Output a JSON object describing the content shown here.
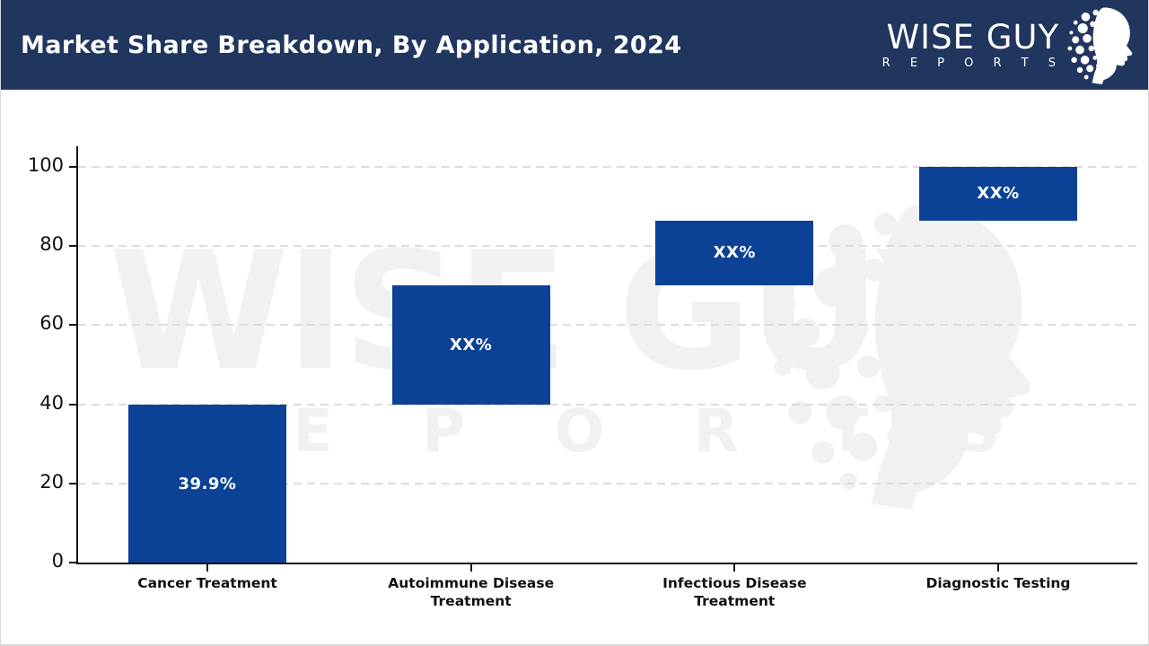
{
  "header": {
    "title": "Market Share Breakdown, By Application, 2024",
    "logo": {
      "line1": "WISE GUY",
      "line2": "R E P O R T S",
      "face_icon": "head-profile-dots-icon"
    }
  },
  "watermark": {
    "line1": "WISE GUY",
    "line2": "R E P O R T S"
  },
  "chart_data": {
    "type": "bar",
    "subtype": "waterfall",
    "title": "Market Share Breakdown, By Application, 2024",
    "categories": [
      "Cancer Treatment",
      "Autoimmune Disease\nTreatment",
      "Infectious Disease\nTreatment",
      "Diagnostic Testing"
    ],
    "segments": [
      {
        "category": "Cancer Treatment",
        "start": 0,
        "end": 39.9,
        "label": "39.9%"
      },
      {
        "category": "Autoimmune Disease Treatment",
        "start": 40,
        "end": 70,
        "label": "XX%"
      },
      {
        "category": "Infectious Disease Treatment",
        "start": 70,
        "end": 86.5,
        "label": "XX%"
      },
      {
        "category": "Diagnostic Testing",
        "start": 86.5,
        "end": 100,
        "label": "XX%"
      }
    ],
    "ylabel": "",
    "xlabel": "",
    "ylim": [
      0,
      100
    ],
    "yticks": [
      0,
      20,
      40,
      60,
      80,
      100
    ],
    "grid": true,
    "grid_style": "dashed",
    "legend": "none",
    "unit": "%"
  },
  "colors": {
    "header_bg": "#21365f",
    "bar": "#0c4296",
    "bar_label": "#ffffff",
    "grid": "#dcdcdc",
    "axis": "#111111",
    "watermark": "#f1f1f3",
    "title_text": "#ffffff"
  }
}
